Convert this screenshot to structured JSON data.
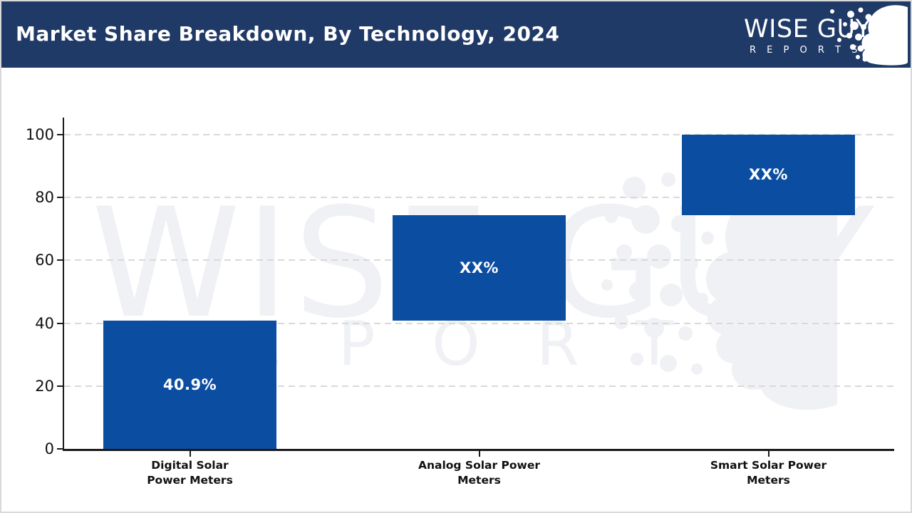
{
  "header": {
    "title": "Market Share Breakdown, By Technology, 2024",
    "bg_color": "#203a67",
    "logo": {
      "line1": "WISE GUY",
      "line2": "R E P O R T S"
    }
  },
  "watermark": {
    "line1": "WISE GUY",
    "line2": "R E P O R T S"
  },
  "chart_data": {
    "type": "bar",
    "subtype": "stacked-progression (floating bars, cumulative to 100%)",
    "title": "Market Share Breakdown, By Technology, 2024",
    "xlabel": "",
    "ylabel": "",
    "ylim": [
      0,
      100
    ],
    "yticks": [
      0,
      20,
      40,
      60,
      80,
      100
    ],
    "grid": "horizontal dashed",
    "legend": "none",
    "bar_color": "#0b4da1",
    "value_label_color": "#ffffff",
    "segments": [
      {
        "category": "Digital Solar Power Meters",
        "lines": [
          "Digital Solar",
          "Power Meters"
        ],
        "start": 0,
        "end": 40.9,
        "label": "40.9%"
      },
      {
        "category": "Analog Solar Power Meters",
        "lines": [
          "Analog Solar Power",
          "Meters"
        ],
        "start": 40.9,
        "end": 74.4,
        "label": "XX%"
      },
      {
        "category": "Smart Solar Power Meters",
        "lines": [
          "Smart Solar Power",
          "Meters"
        ],
        "start": 74.4,
        "end": 100,
        "label": "XX%"
      }
    ]
  },
  "colors": {
    "header_bg": "#203a67",
    "bar": "#0b4da1",
    "grid": "#d9d9d9",
    "axis": "#1a1a1a",
    "watermark": "#f0f1f4",
    "frame_border": "#d9d9d9"
  }
}
